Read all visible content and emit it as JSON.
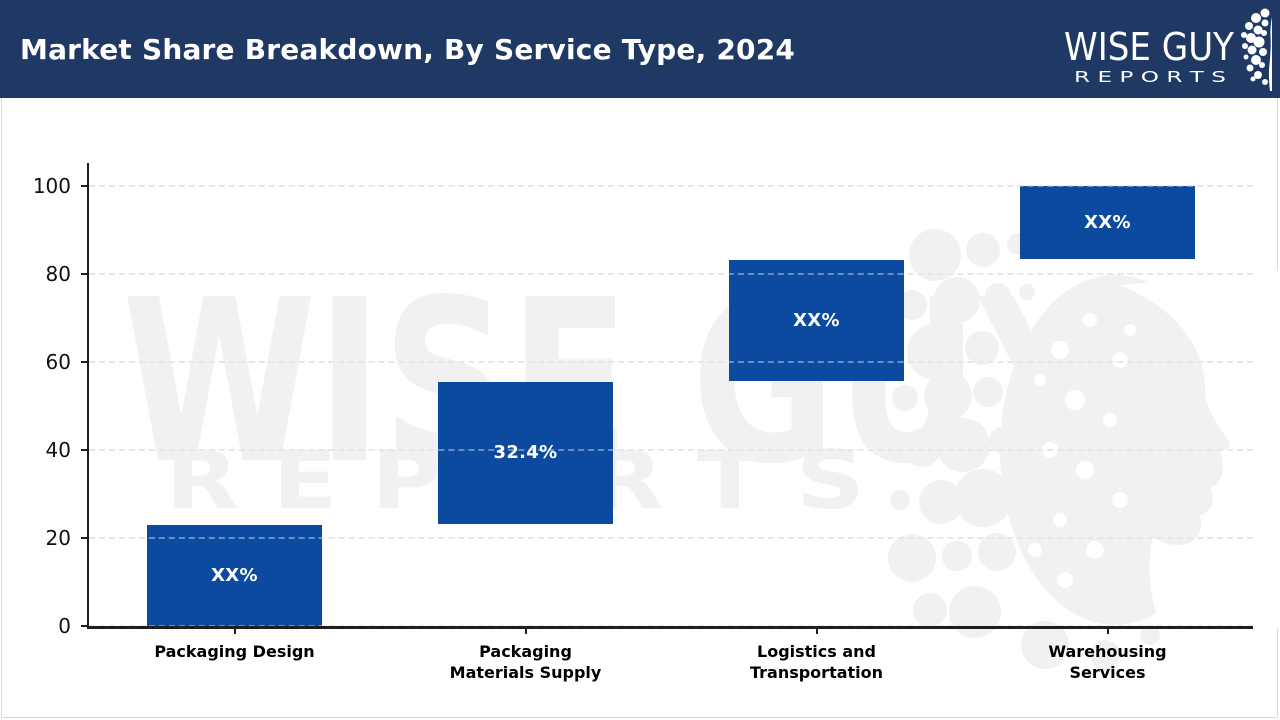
{
  "header": {
    "title": "Market Share Breakdown, By Service Type, 2024",
    "logo": {
      "wordmark": "WISE GUY",
      "subtext": "R E P O R T S"
    }
  },
  "watermark": {
    "wordmark": "WISE GUY",
    "subtext": "R E P O R T S"
  },
  "chart_data": {
    "type": "bar",
    "subtype": "floating-waterfall",
    "title": "Market Share Breakdown, By Service Type, 2024",
    "categories": [
      [
        "Packaging Design"
      ],
      [
        "Packaging",
        "Materials Supply"
      ],
      [
        "Logistics and",
        "Transportation"
      ],
      [
        "Warehousing",
        "Services"
      ]
    ],
    "segments": [
      {
        "category": "Packaging Design",
        "from": 0,
        "to": 23,
        "label": "XX%"
      },
      {
        "category": "Packaging Materials Supply",
        "from": 23.1,
        "to": 55.5,
        "label": "32.4%"
      },
      {
        "category": "Logistics and Transportation",
        "from": 55.6,
        "to": 83.2,
        "label": "XX%"
      },
      {
        "category": "Warehousing Services",
        "from": 83.3,
        "to": 99.9,
        "label": "XX%"
      }
    ],
    "yticks": [
      0,
      20,
      40,
      60,
      80,
      100
    ],
    "ylim": [
      0,
      100
    ],
    "xlabel": "",
    "ylabel": "",
    "legend": null,
    "grid": "horizontal-dashed",
    "colors": {
      "bar": "#0b4a9e",
      "label_text": "#ffffff",
      "axis": "#1f1f1f",
      "grid": "#d9d9d9",
      "header_bg": "#203864",
      "watermark": "#f1f1f4"
    }
  }
}
